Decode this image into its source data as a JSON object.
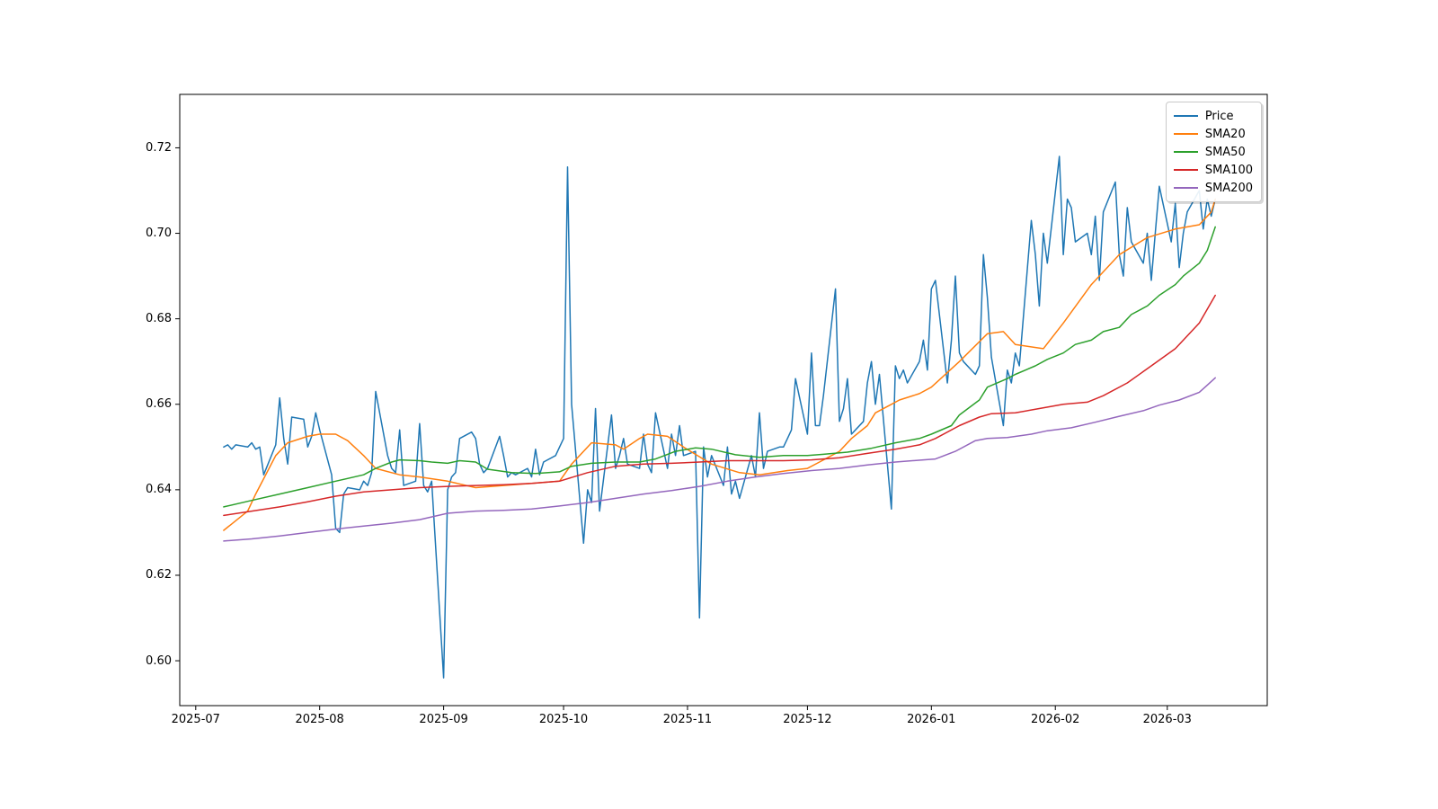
{
  "chart_data": {
    "type": "line",
    "title": "",
    "xlabel": "",
    "ylabel": "",
    "grid": false,
    "background_color": "#ffffff",
    "x_axis": {
      "start_date": "2025-07-08",
      "frequency": "weekdays",
      "domain": [
        "2025-06-27",
        "2026-03-26"
      ],
      "tick_dates": [
        "2025-07-01",
        "2025-08-01",
        "2025-09-01",
        "2025-10-01",
        "2025-11-01",
        "2025-12-01",
        "2026-01-01",
        "2026-02-01",
        "2026-03-01"
      ],
      "tick_labels": [
        "2025-07",
        "2025-08",
        "2025-09",
        "2025-10",
        "2025-11",
        "2025-12",
        "2026-01",
        "2026-02",
        "2026-03"
      ]
    },
    "y_axis": {
      "domain": [
        0.5895,
        0.7325
      ],
      "tick_values": [
        0.6,
        0.62,
        0.64,
        0.66,
        0.68,
        0.7,
        0.72
      ],
      "tick_labels": [
        "0.60",
        "0.62",
        "0.64",
        "0.66",
        "0.68",
        "0.70",
        "0.72"
      ]
    },
    "legend": {
      "position": "upper right",
      "entries": [
        "Price",
        "SMA20",
        "SMA50",
        "SMA100",
        "SMA200"
      ]
    },
    "series": [
      {
        "name": "Price",
        "color": "#1f77b4",
        "values": [
          0.65,
          0.6505,
          0.6495,
          0.6505,
          0.65,
          0.651,
          0.6495,
          0.65,
          0.6435,
          0.6505,
          0.6615,
          0.652,
          0.646,
          0.657,
          0.6565,
          0.65,
          0.6525,
          0.658,
          0.654,
          0.6435,
          0.631,
          0.63,
          0.639,
          0.6405,
          0.64,
          0.642,
          0.641,
          0.644,
          0.663,
          0.648,
          0.645,
          0.644,
          0.654,
          0.641,
          0.642,
          0.6555,
          0.641,
          0.6395,
          0.642,
          0.596,
          0.64,
          0.643,
          0.644,
          0.652,
          0.6535,
          0.652,
          0.646,
          0.644,
          0.645,
          0.6525,
          0.648,
          0.643,
          0.644,
          0.6435,
          0.645,
          0.643,
          0.6495,
          0.6435,
          0.6465,
          0.648,
          0.65,
          0.652,
          0.7155,
          0.66,
          0.6275,
          0.64,
          0.637,
          0.659,
          0.635,
          0.6575,
          0.645,
          0.648,
          0.652,
          0.646,
          0.645,
          0.653,
          0.646,
          0.644,
          0.658,
          0.645,
          0.653,
          0.648,
          0.655,
          0.648,
          0.649,
          0.61,
          0.65,
          0.643,
          0.648,
          0.641,
          0.65,
          0.639,
          0.642,
          0.638,
          0.648,
          0.643,
          0.658,
          0.645,
          0.649,
          0.65,
          0.65,
          0.652,
          0.654,
          0.666,
          0.653,
          0.672,
          0.655,
          0.655,
          0.662,
          0.687,
          0.656,
          0.659,
          0.666,
          0.653,
          0.656,
          0.665,
          0.67,
          0.66,
          0.667,
          0.6355,
          0.669,
          0.666,
          0.668,
          0.665,
          0.67,
          0.675,
          0.668,
          0.687,
          0.689,
          0.665,
          0.675,
          0.69,
          0.672,
          0.67,
          0.667,
          0.669,
          0.695,
          0.685,
          0.671,
          0.655,
          0.668,
          0.665,
          0.672,
          0.669,
          0.703,
          0.695,
          0.683,
          0.7,
          0.693,
          0.718,
          0.695,
          0.708,
          0.706,
          0.698,
          0.7,
          0.695,
          0.704,
          0.689,
          0.705,
          0.712,
          0.695,
          0.69,
          0.706,
          0.698,
          0.693,
          0.7,
          0.689,
          0.7,
          0.711,
          0.698,
          0.707,
          0.692,
          0.7,
          0.705,
          0.71,
          0.701,
          0.708,
          0.704,
          0.708
        ]
      },
      {
        "name": "SMA20",
        "color": "#ff7f0e",
        "points": [
          [
            0,
            0.6305
          ],
          [
            2,
            0.632
          ],
          [
            4,
            0.635
          ],
          [
            6,
            0.639
          ],
          [
            9,
            0.648
          ],
          [
            12,
            0.651
          ],
          [
            15,
            0.6525
          ],
          [
            18,
            0.653
          ],
          [
            20,
            0.653
          ],
          [
            23,
            0.6515
          ],
          [
            25,
            0.648
          ],
          [
            28,
            0.645
          ],
          [
            32,
            0.6435
          ],
          [
            35,
            0.643
          ],
          [
            40,
            0.642
          ],
          [
            45,
            0.6405
          ],
          [
            50,
            0.641
          ],
          [
            55,
            0.6415
          ],
          [
            60,
            0.642
          ],
          [
            63,
            0.646
          ],
          [
            66,
            0.651
          ],
          [
            70,
            0.6505
          ],
          [
            72,
            0.6495
          ],
          [
            74,
            0.652
          ],
          [
            76,
            0.653
          ],
          [
            79,
            0.6525
          ],
          [
            83,
            0.65
          ],
          [
            88,
            0.646
          ],
          [
            93,
            0.644
          ],
          [
            96,
            0.6435
          ],
          [
            101,
            0.6445
          ],
          [
            104,
            0.645
          ],
          [
            107,
            0.6465
          ],
          [
            110,
            0.649
          ],
          [
            113,
            0.652
          ],
          [
            115,
            0.655
          ],
          [
            117,
            0.658
          ],
          [
            119,
            0.66
          ],
          [
            121,
            0.661
          ],
          [
            124,
            0.6625
          ],
          [
            127,
            0.664
          ],
          [
            132,
            0.67
          ],
          [
            137,
            0.6765
          ],
          [
            139,
            0.677
          ],
          [
            142,
            0.674
          ],
          [
            147,
            0.673
          ],
          [
            150,
            0.679
          ],
          [
            155,
            0.688
          ],
          [
            160,
            0.695
          ],
          [
            165,
            0.699
          ],
          [
            170,
            0.701
          ],
          [
            174,
            0.702
          ],
          [
            177,
            0.705
          ],
          [
            178,
            0.708
          ]
        ]
      },
      {
        "name": "SMA50",
        "color": "#2ca02c",
        "points": [
          [
            0,
            0.636
          ],
          [
            5,
            0.6375
          ],
          [
            10,
            0.639
          ],
          [
            15,
            0.6405
          ],
          [
            20,
            0.642
          ],
          [
            25,
            0.6435
          ],
          [
            28,
            0.645
          ],
          [
            30,
            0.6465
          ],
          [
            32,
            0.647
          ],
          [
            35,
            0.6468
          ],
          [
            38,
            0.6465
          ],
          [
            40,
            0.6462
          ],
          [
            43,
            0.6468
          ],
          [
            45,
            0.6465
          ],
          [
            48,
            0.6448
          ],
          [
            52,
            0.644
          ],
          [
            56,
            0.6438
          ],
          [
            60,
            0.6442
          ],
          [
            63,
            0.6455
          ],
          [
            66,
            0.6462
          ],
          [
            70,
            0.6465
          ],
          [
            74,
            0.6465
          ],
          [
            78,
            0.6472
          ],
          [
            81,
            0.649
          ],
          [
            84,
            0.6498
          ],
          [
            88,
            0.6495
          ],
          [
            92,
            0.6482
          ],
          [
            96,
            0.6476
          ],
          [
            100,
            0.648
          ],
          [
            104,
            0.648
          ],
          [
            108,
            0.6483
          ],
          [
            112,
            0.6488
          ],
          [
            116,
            0.6497
          ],
          [
            120,
            0.651
          ],
          [
            124,
            0.652
          ],
          [
            127,
            0.653
          ],
          [
            130,
            0.655
          ],
          [
            132,
            0.6575
          ],
          [
            135,
            0.661
          ],
          [
            137,
            0.664
          ],
          [
            140,
            0.666
          ],
          [
            142,
            0.667
          ],
          [
            145,
            0.669
          ],
          [
            148,
            0.6705
          ],
          [
            150,
            0.672
          ],
          [
            153,
            0.674
          ],
          [
            155,
            0.675
          ],
          [
            158,
            0.677
          ],
          [
            160,
            0.678
          ],
          [
            163,
            0.681
          ],
          [
            165,
            0.683
          ],
          [
            168,
            0.6855
          ],
          [
            170,
            0.688
          ],
          [
            172,
            0.69
          ],
          [
            174,
            0.693
          ],
          [
            176,
            0.696
          ],
          [
            178,
            0.7015
          ]
        ]
      },
      {
        "name": "SMA100",
        "color": "#d62728",
        "points": [
          [
            0,
            0.634
          ],
          [
            5,
            0.635
          ],
          [
            10,
            0.636
          ],
          [
            15,
            0.6372
          ],
          [
            20,
            0.6385
          ],
          [
            25,
            0.6395
          ],
          [
            30,
            0.64
          ],
          [
            35,
            0.6405
          ],
          [
            40,
            0.6408
          ],
          [
            45,
            0.641
          ],
          [
            50,
            0.6412
          ],
          [
            55,
            0.6415
          ],
          [
            60,
            0.642
          ],
          [
            65,
            0.644
          ],
          [
            70,
            0.6455
          ],
          [
            75,
            0.646
          ],
          [
            80,
            0.6462
          ],
          [
            85,
            0.6465
          ],
          [
            90,
            0.6468
          ],
          [
            95,
            0.6468
          ],
          [
            100,
            0.6468
          ],
          [
            105,
            0.647
          ],
          [
            110,
            0.6475
          ],
          [
            115,
            0.6485
          ],
          [
            120,
            0.6495
          ],
          [
            124,
            0.6505
          ],
          [
            128,
            0.652
          ],
          [
            132,
            0.655
          ],
          [
            135,
            0.657
          ],
          [
            138,
            0.6578
          ],
          [
            142,
            0.658
          ],
          [
            146,
            0.659
          ],
          [
            150,
            0.66
          ],
          [
            154,
            0.6605
          ],
          [
            158,
            0.662
          ],
          [
            162,
            0.665
          ],
          [
            166,
            0.669
          ],
          [
            170,
            0.673
          ],
          [
            174,
            0.679
          ],
          [
            178,
            0.6855
          ]
        ]
      },
      {
        "name": "SMA200",
        "color": "#9467bd",
        "points": [
          [
            0,
            0.628
          ],
          [
            5,
            0.6285
          ],
          [
            10,
            0.6292
          ],
          [
            15,
            0.63
          ],
          [
            20,
            0.6308
          ],
          [
            25,
            0.6315
          ],
          [
            30,
            0.6322
          ],
          [
            35,
            0.633
          ],
          [
            40,
            0.6345
          ],
          [
            45,
            0.635
          ],
          [
            50,
            0.6352
          ],
          [
            55,
            0.6355
          ],
          [
            60,
            0.6362
          ],
          [
            65,
            0.637
          ],
          [
            70,
            0.638
          ],
          [
            75,
            0.639
          ],
          [
            80,
            0.6398
          ],
          [
            85,
            0.6408
          ],
          [
            90,
            0.642
          ],
          [
            95,
            0.643
          ],
          [
            100,
            0.6438
          ],
          [
            105,
            0.6445
          ],
          [
            110,
            0.645
          ],
          [
            115,
            0.6458
          ],
          [
            120,
            0.6465
          ],
          [
            125,
            0.647
          ],
          [
            128,
            0.6472
          ],
          [
            131,
            0.649
          ],
          [
            134,
            0.6515
          ],
          [
            137,
            0.652
          ],
          [
            140,
            0.6522
          ],
          [
            144,
            0.653
          ],
          [
            148,
            0.6538
          ],
          [
            152,
            0.6545
          ],
          [
            156,
            0.6558
          ],
          [
            160,
            0.6572
          ],
          [
            164,
            0.6585
          ],
          [
            168,
            0.6598
          ],
          [
            171,
            0.661
          ],
          [
            174,
            0.6628
          ],
          [
            176,
            0.6645
          ],
          [
            178,
            0.6662
          ]
        ]
      }
    ]
  }
}
